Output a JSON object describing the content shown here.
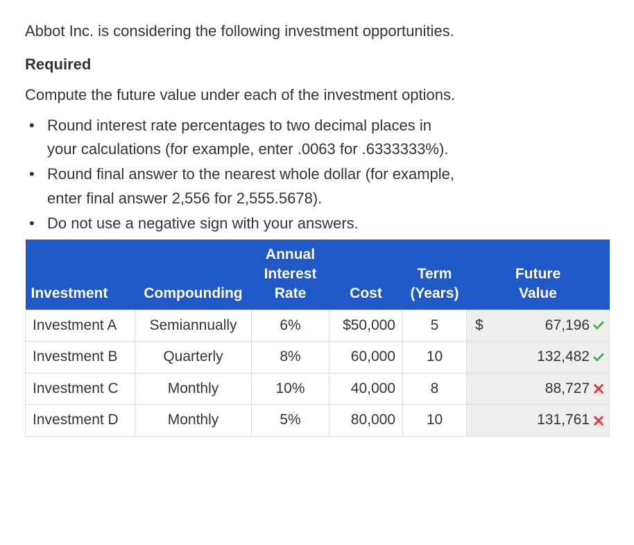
{
  "intro": "Abbot Inc. is considering the following investment opportunities.",
  "required_heading": "Required",
  "instruction": "Compute the future value under each of the investment options.",
  "bullets": [
    {
      "lead": "Round interest rate percentages to two decimal places in",
      "cont": "your calculations (for example, enter .0063 for .6333333%)."
    },
    {
      "lead": "Round final answer to the nearest whole dollar (for example,",
      "cont": "enter final answer 2,556 for 2,555.5678)."
    },
    {
      "lead": "Do not use a negative sign with your answers.",
      "cont": ""
    }
  ],
  "table": {
    "header_bg": "#1f58c7",
    "header_fg": "#ffffff",
    "cell_border": "#dddddd",
    "fv_bg": "#eeeeee",
    "columns": {
      "investment": "Investment",
      "compounding": "Compounding",
      "rate_line1": "Annual",
      "rate_line2": "Interest",
      "rate_line3": "Rate",
      "cost": "Cost",
      "term_line1": "Term",
      "term_line2": "(Years)",
      "fv_line1": "Future",
      "fv_line2": "Value"
    },
    "rows": [
      {
        "investment": "Investment A",
        "compounding": "Semiannually",
        "rate": "6%",
        "cost": "$50,000",
        "term": "5",
        "dollar": "$",
        "fv": "67,196",
        "status": "correct"
      },
      {
        "investment": "Investment B",
        "compounding": "Quarterly",
        "rate": "8%",
        "cost": "60,000",
        "term": "10",
        "dollar": "",
        "fv": "132,482",
        "status": "correct"
      },
      {
        "investment": "Investment C",
        "compounding": "Monthly",
        "rate": "10%",
        "cost": "40,000",
        "term": "8",
        "dollar": "",
        "fv": "88,727",
        "status": "wrong"
      },
      {
        "investment": "Investment D",
        "compounding": "Monthly",
        "rate": "5%",
        "cost": "80,000",
        "term": "10",
        "dollar": "",
        "fv": "131,761",
        "status": "wrong"
      }
    ]
  },
  "icons": {
    "correct_color": "#4caf50",
    "wrong_color": "#e53935"
  }
}
